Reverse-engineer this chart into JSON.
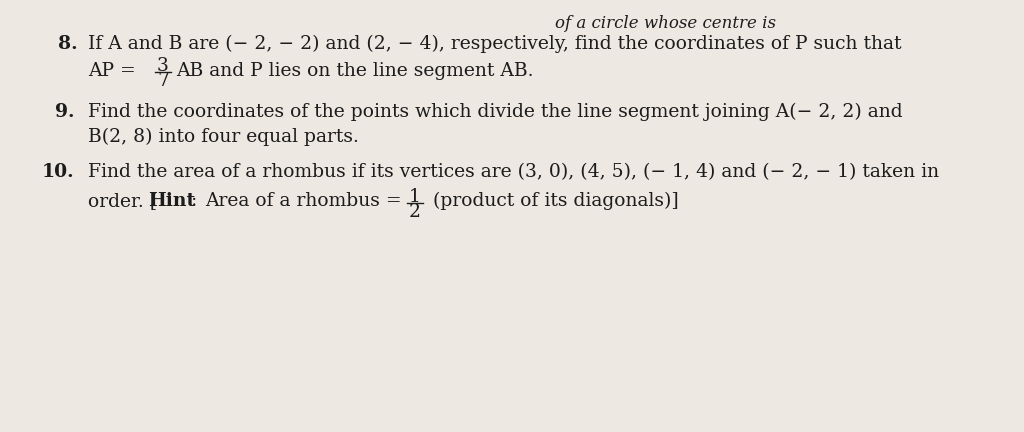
{
  "background_color": "#ede8e2",
  "top_right_text": "of a circle whose centre is",
  "q8_number": "8.",
  "q8_line1": "If A and B are (− 2, − 2) and (2, − 4), respectively, find the coordinates of P such that",
  "q8_frac_num": "3",
  "q8_frac_den": "7",
  "q8_line2": "AB and P lies on the line segment AB.",
  "q8_ap": "AP = ",
  "q9_number": "9.",
  "q9_line1": "Find the coordinates of the points which divide the line segment joining A(− 2, 2) and",
  "q9_line2": "B(2, 8) into four equal parts.",
  "q10_number": "10.",
  "q10_line1": "Find the area of a rhombus if its vertices are (3, 0), (4, 5), (− 1, 4) and (− 2, − 1) taken in",
  "q10_order": "order. [",
  "q10_hint_bold": "Hint",
  "q10_hint_colon": " : ",
  "q10_hint_text": "Area of a rhombus = ",
  "q10_hint_frac_num": "1",
  "q10_hint_frac_den": "2",
  "q10_hint_end": " (product of its diagonals)]",
  "font_size": 13.5,
  "font_size_small": 12,
  "text_color": "#1c1c1c"
}
